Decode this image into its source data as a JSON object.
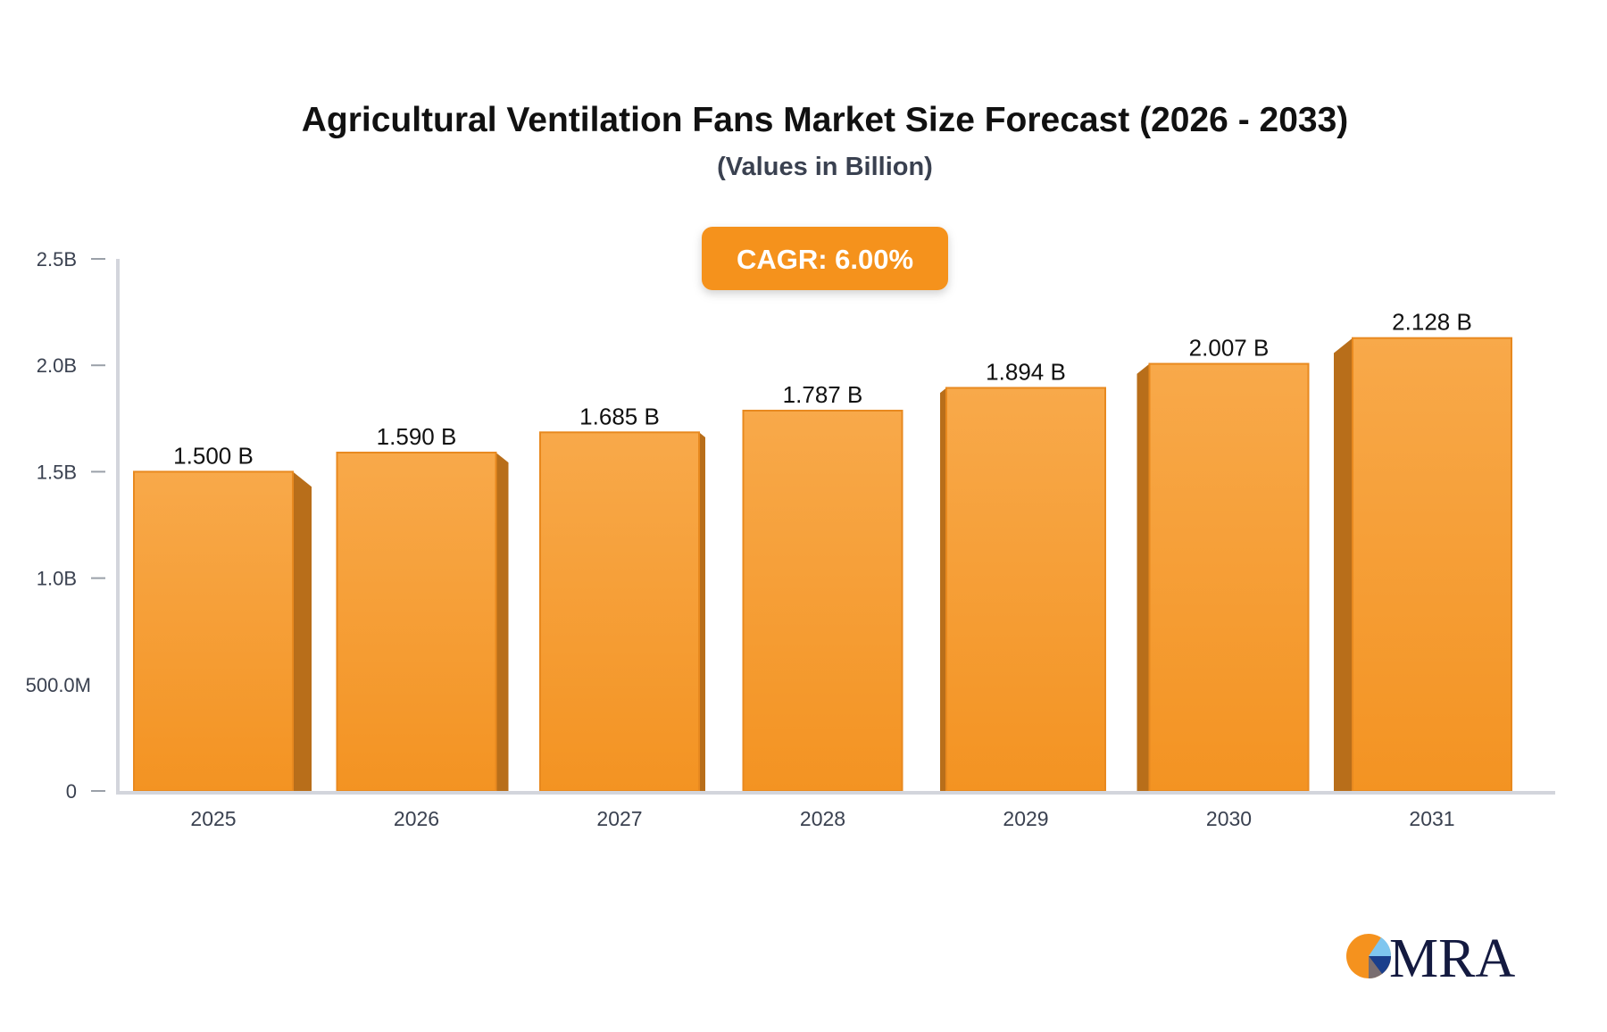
{
  "chart_data": {
    "type": "bar",
    "title": "Agricultural Ventilation Fans Market Size Forecast (2026 - 2033)",
    "subtitle": "(Values in Billion)",
    "badge": "CAGR: 6.00%",
    "categories": [
      "2025",
      "2026",
      "2027",
      "2028",
      "2029",
      "2030",
      "2031"
    ],
    "values": [
      1.5,
      1.59,
      1.685,
      1.787,
      1.894,
      2.007,
      2.128
    ],
    "data_labels": [
      "1.500 B",
      "1.590 B",
      "1.685 B",
      "1.787 B",
      "1.894 B",
      "2.007 B",
      "2.128 B"
    ],
    "unit": "Billion",
    "ylim": [
      0,
      2.5
    ],
    "yticks": [
      0,
      0.5,
      1.0,
      1.5,
      2.0,
      2.5
    ],
    "ytick_labels": [
      "0",
      "500.0M",
      "1.0B",
      "1.5B",
      "2.0B",
      "2.5B"
    ],
    "grid": false,
    "legend": "none",
    "colors": {
      "bar_top": "#f8a94a",
      "bar_bottom": "#f39322",
      "bar_edge": "#e8891f",
      "bar_side": "#b86e1a",
      "badge": "#f5921e",
      "axis": "#d3d5dc"
    }
  },
  "logo": {
    "text": "MRA"
  }
}
